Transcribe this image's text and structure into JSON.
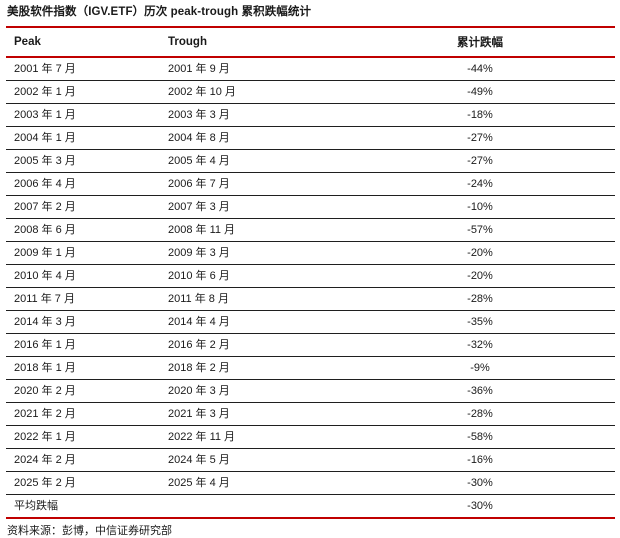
{
  "title": "美股软件指数（IGV.ETF）历次 peak-trough 累积跌幅统计",
  "source_note": "资料来源：彭博，中信证券研究部",
  "colors": {
    "accent_red": "#c00000",
    "row_line": "#1f1f1f",
    "text": "#1a1a1a",
    "background": "#ffffff"
  },
  "table": {
    "columns": [
      "Peak",
      "Trough",
      "累计跌幅"
    ],
    "rows": [
      [
        "2001 年 7 月",
        "2001 年 9 月",
        "-44%"
      ],
      [
        "2002 年 1 月",
        "2002 年 10 月",
        "-49%"
      ],
      [
        "2003 年 1 月",
        "2003 年 3 月",
        "-18%"
      ],
      [
        "2004 年 1 月",
        "2004 年 8 月",
        "-27%"
      ],
      [
        "2005 年 3 月",
        "2005 年 4 月",
        "-27%"
      ],
      [
        "2006 年 4 月",
        "2006 年 7 月",
        "-24%"
      ],
      [
        "2007 年 2 月",
        "2007 年 3 月",
        "-10%"
      ],
      [
        "2008 年 6 月",
        "2008 年 11 月",
        "-57%"
      ],
      [
        "2009 年 1 月",
        "2009 年 3 月",
        "-20%"
      ],
      [
        "2010 年 4 月",
        "2010 年 6 月",
        "-20%"
      ],
      [
        "2011 年 7 月",
        "2011 年 8 月",
        "-28%"
      ],
      [
        "2014 年 3 月",
        "2014 年 4 月",
        "-35%"
      ],
      [
        "2016 年 1 月",
        "2016 年 2 月",
        "-32%"
      ],
      [
        "2018 年 1 月",
        "2018 年 2 月",
        "-9%"
      ],
      [
        "2020 年 2 月",
        "2020 年 3 月",
        "-36%"
      ],
      [
        "2021 年 2 月",
        "2021 年 3 月",
        "-28%"
      ],
      [
        "2022 年 1 月",
        "2022 年 11 月",
        "-58%"
      ],
      [
        "2024 年 2 月",
        "2024 年 5 月",
        "-16%"
      ],
      [
        "2025 年 2 月",
        "2025 年 4 月",
        "-30%"
      ],
      [
        "平均跌幅",
        "",
        "-30%"
      ]
    ]
  }
}
